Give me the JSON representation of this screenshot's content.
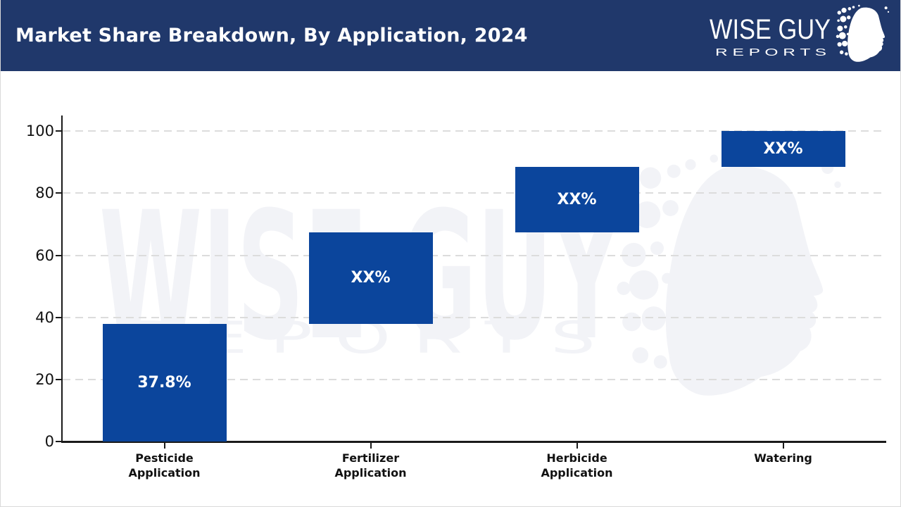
{
  "header": {
    "title": "Market Share Breakdown, By Application, 2024",
    "bg_color": "#20386b",
    "logo": {
      "line1": "WISE GUY",
      "line2": "R E P O R T S"
    }
  },
  "watermark": {
    "line1": "WISE GUY",
    "line2": "R E P O R T S"
  },
  "chart_data": {
    "type": "bar",
    "variant": "waterfall",
    "title": "Market Share Breakdown, By Application, 2024",
    "categories": [
      "Pesticide Application",
      "Fertilizer Application",
      "Herbicide Application",
      "Watering"
    ],
    "category_label_lines": [
      [
        "Pesticide",
        "Application"
      ],
      [
        "Fertilizer",
        "Application"
      ],
      [
        "Herbicide",
        "Application"
      ],
      [
        "Watering"
      ]
    ],
    "segments": [
      {
        "category": "Pesticide Application",
        "start": 0,
        "end": 37.8,
        "label": "37.8%"
      },
      {
        "category": "Fertilizer Application",
        "start": 37.8,
        "end": 67.5,
        "label": "XX%"
      },
      {
        "category": "Herbicide Application",
        "start": 67.5,
        "end": 88.5,
        "label": "XX%"
      },
      {
        "category": "Watering",
        "start": 88.5,
        "end": 100,
        "label": "XX%"
      }
    ],
    "values": [
      37.8,
      29.7,
      21.0,
      11.5
    ],
    "bar_labels": [
      "37.8%",
      "XX%",
      "XX%",
      "XX%"
    ],
    "yticks": [
      0,
      20,
      40,
      60,
      80,
      100
    ],
    "ylim": [
      0,
      105
    ],
    "xlabel": "",
    "ylabel": "",
    "grid": true,
    "grid_color": "#dcdcdc",
    "bar_color": "#0b459c",
    "bar_label_color": "#ffffff",
    "legend": false
  }
}
